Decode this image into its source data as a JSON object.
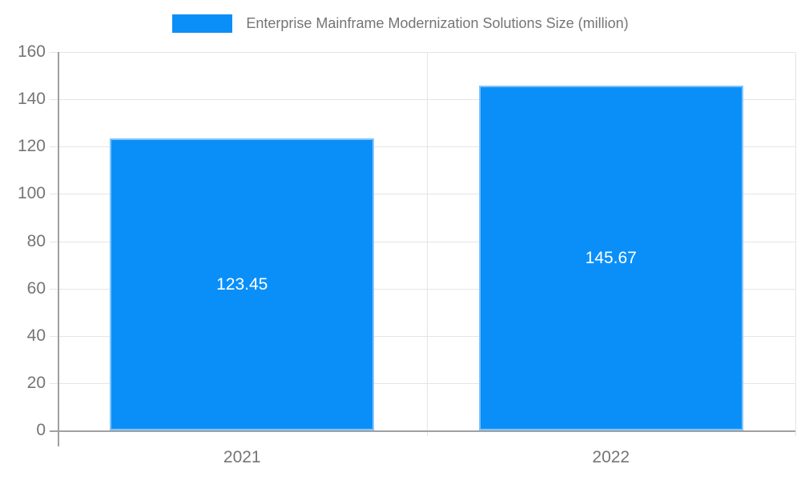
{
  "legend": {
    "label": "Enterprise Mainframe Modernization Solutions Size (million)"
  },
  "chart_data": {
    "type": "bar",
    "title": "Enterprise Mainframe Modernization Solutions Size (million)",
    "categories": [
      "2021",
      "2022"
    ],
    "values": [
      123.45,
      145.67
    ],
    "value_labels": [
      "123.45",
      "145.67"
    ],
    "xlabel": "",
    "ylabel": "",
    "ylim": [
      0,
      160
    ],
    "ytick_step": 20,
    "grid": true,
    "legend_position": "top-center",
    "colors": {
      "bar_fill": "#0a8ff9",
      "bar_stroke": "#82c4fb",
      "grid": "#e4e4e4",
      "axis": "#a0a0a0",
      "text": "#757575",
      "value_label": "#ffffff"
    }
  }
}
